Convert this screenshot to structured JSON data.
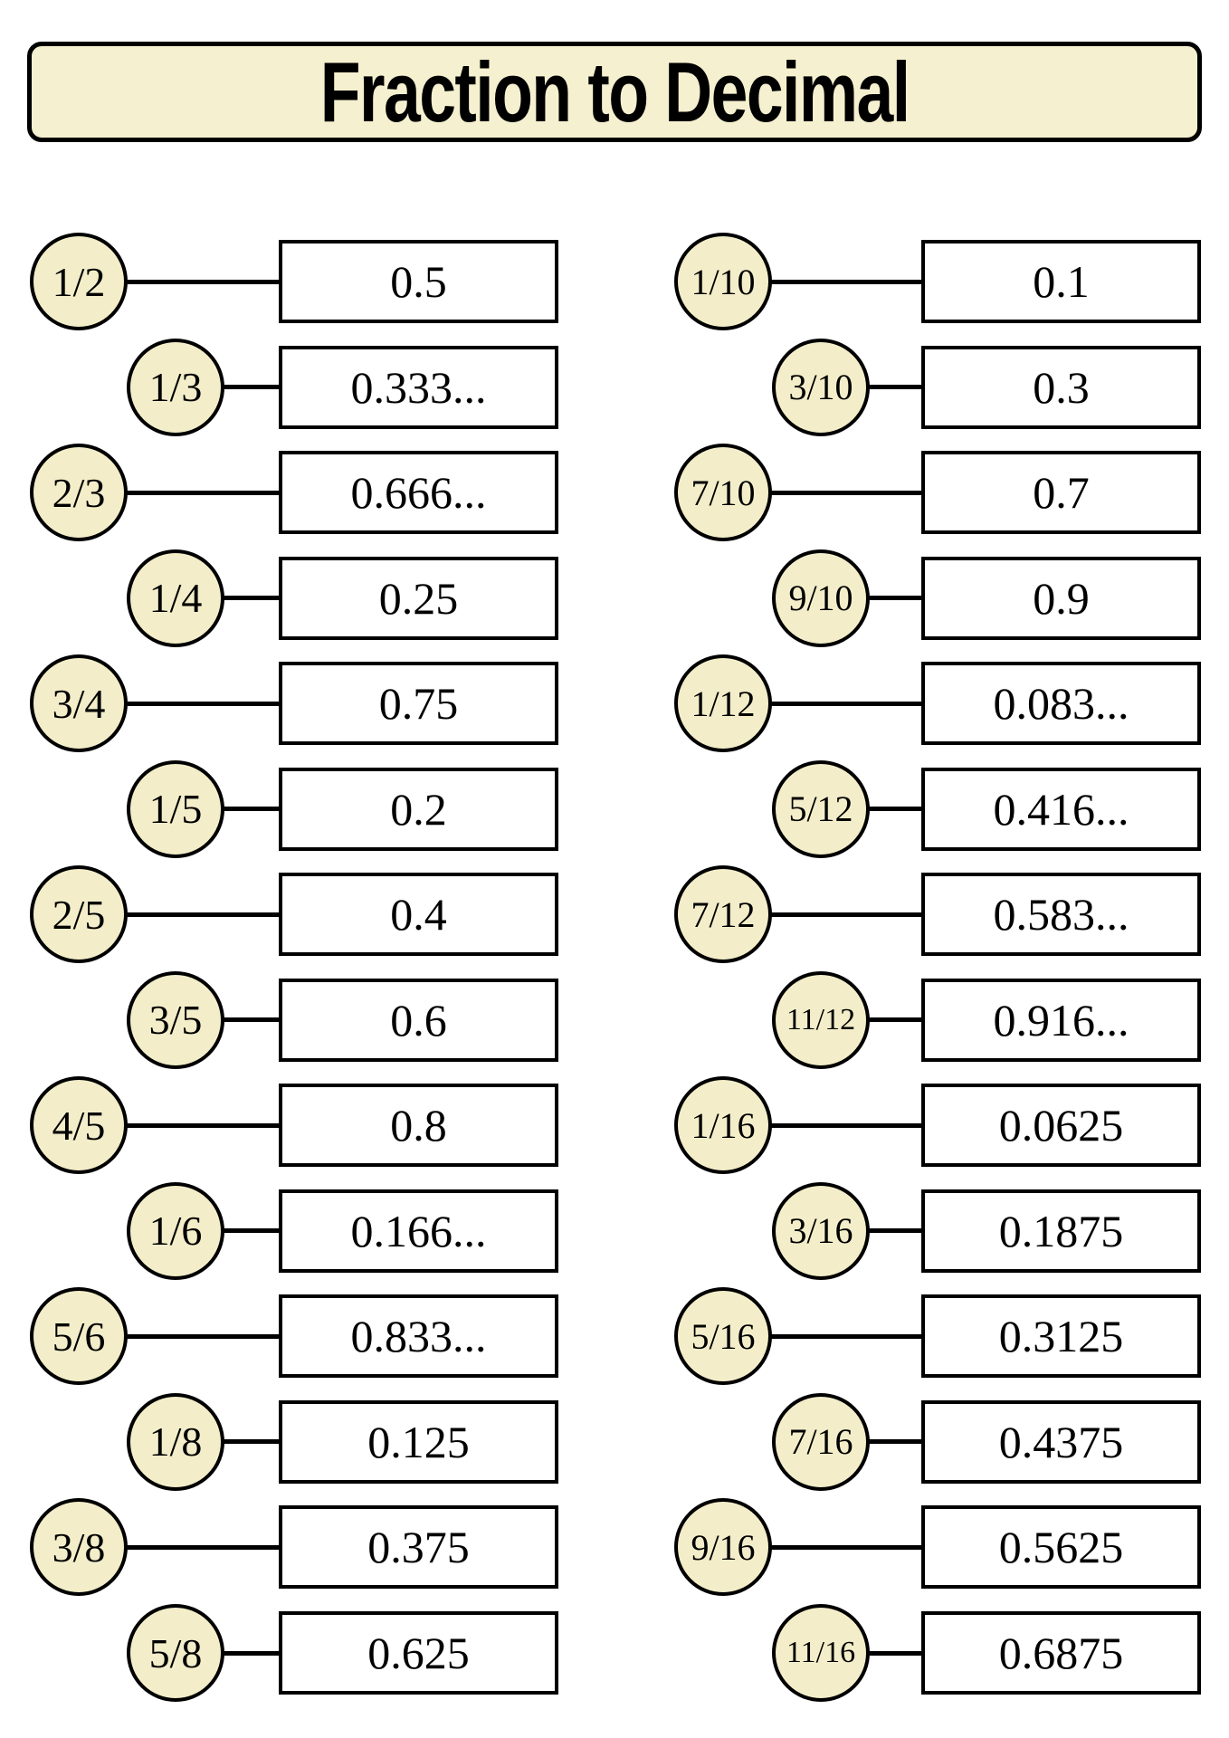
{
  "title": "Fraction to Decimal",
  "colors": {
    "page_background": "#ffffff",
    "banner_fill": "#f5f0cf",
    "circle_fill": "#f3eec9",
    "box_fill": "#ffffff",
    "outline": "#000000",
    "text": "#000000"
  },
  "columns": [
    {
      "rows": [
        {
          "fraction": "1/2",
          "decimal": "0.5",
          "position": "left"
        },
        {
          "fraction": "1/3",
          "decimal": "0.333...",
          "position": "indent"
        },
        {
          "fraction": "2/3",
          "decimal": "0.666...",
          "position": "left"
        },
        {
          "fraction": "1/4",
          "decimal": "0.25",
          "position": "indent"
        },
        {
          "fraction": "3/4",
          "decimal": "0.75",
          "position": "left"
        },
        {
          "fraction": "1/5",
          "decimal": "0.2",
          "position": "indent"
        },
        {
          "fraction": "2/5",
          "decimal": "0.4",
          "position": "left"
        },
        {
          "fraction": "3/5",
          "decimal": "0.6",
          "position": "indent"
        },
        {
          "fraction": "4/5",
          "decimal": "0.8",
          "position": "left"
        },
        {
          "fraction": "1/6",
          "decimal": "0.166...",
          "position": "indent"
        },
        {
          "fraction": "5/6",
          "decimal": "0.833...",
          "position": "left"
        },
        {
          "fraction": "1/8",
          "decimal": "0.125",
          "position": "indent"
        },
        {
          "fraction": "3/8",
          "decimal": "0.375",
          "position": "left"
        },
        {
          "fraction": "5/8",
          "decimal": "0.625",
          "position": "indent"
        }
      ]
    },
    {
      "rows": [
        {
          "fraction": "1/10",
          "decimal": "0.1",
          "position": "left"
        },
        {
          "fraction": "3/10",
          "decimal": "0.3",
          "position": "indent"
        },
        {
          "fraction": "7/10",
          "decimal": "0.7",
          "position": "left"
        },
        {
          "fraction": "9/10",
          "decimal": "0.9",
          "position": "indent"
        },
        {
          "fraction": "1/12",
          "decimal": "0.083...",
          "position": "left"
        },
        {
          "fraction": "5/12",
          "decimal": "0.416...",
          "position": "indent"
        },
        {
          "fraction": "7/12",
          "decimal": "0.583...",
          "position": "left"
        },
        {
          "fraction": "11/12",
          "decimal": "0.916...",
          "position": "indent"
        },
        {
          "fraction": "1/16",
          "decimal": "0.0625",
          "position": "left"
        },
        {
          "fraction": "3/16",
          "decimal": "0.1875",
          "position": "indent"
        },
        {
          "fraction": "5/16",
          "decimal": "0.3125",
          "position": "left"
        },
        {
          "fraction": "7/16",
          "decimal": "0.4375",
          "position": "indent"
        },
        {
          "fraction": "9/16",
          "decimal": "0.5625",
          "position": "left"
        },
        {
          "fraction": "11/16",
          "decimal": "0.6875",
          "position": "indent"
        }
      ]
    }
  ]
}
